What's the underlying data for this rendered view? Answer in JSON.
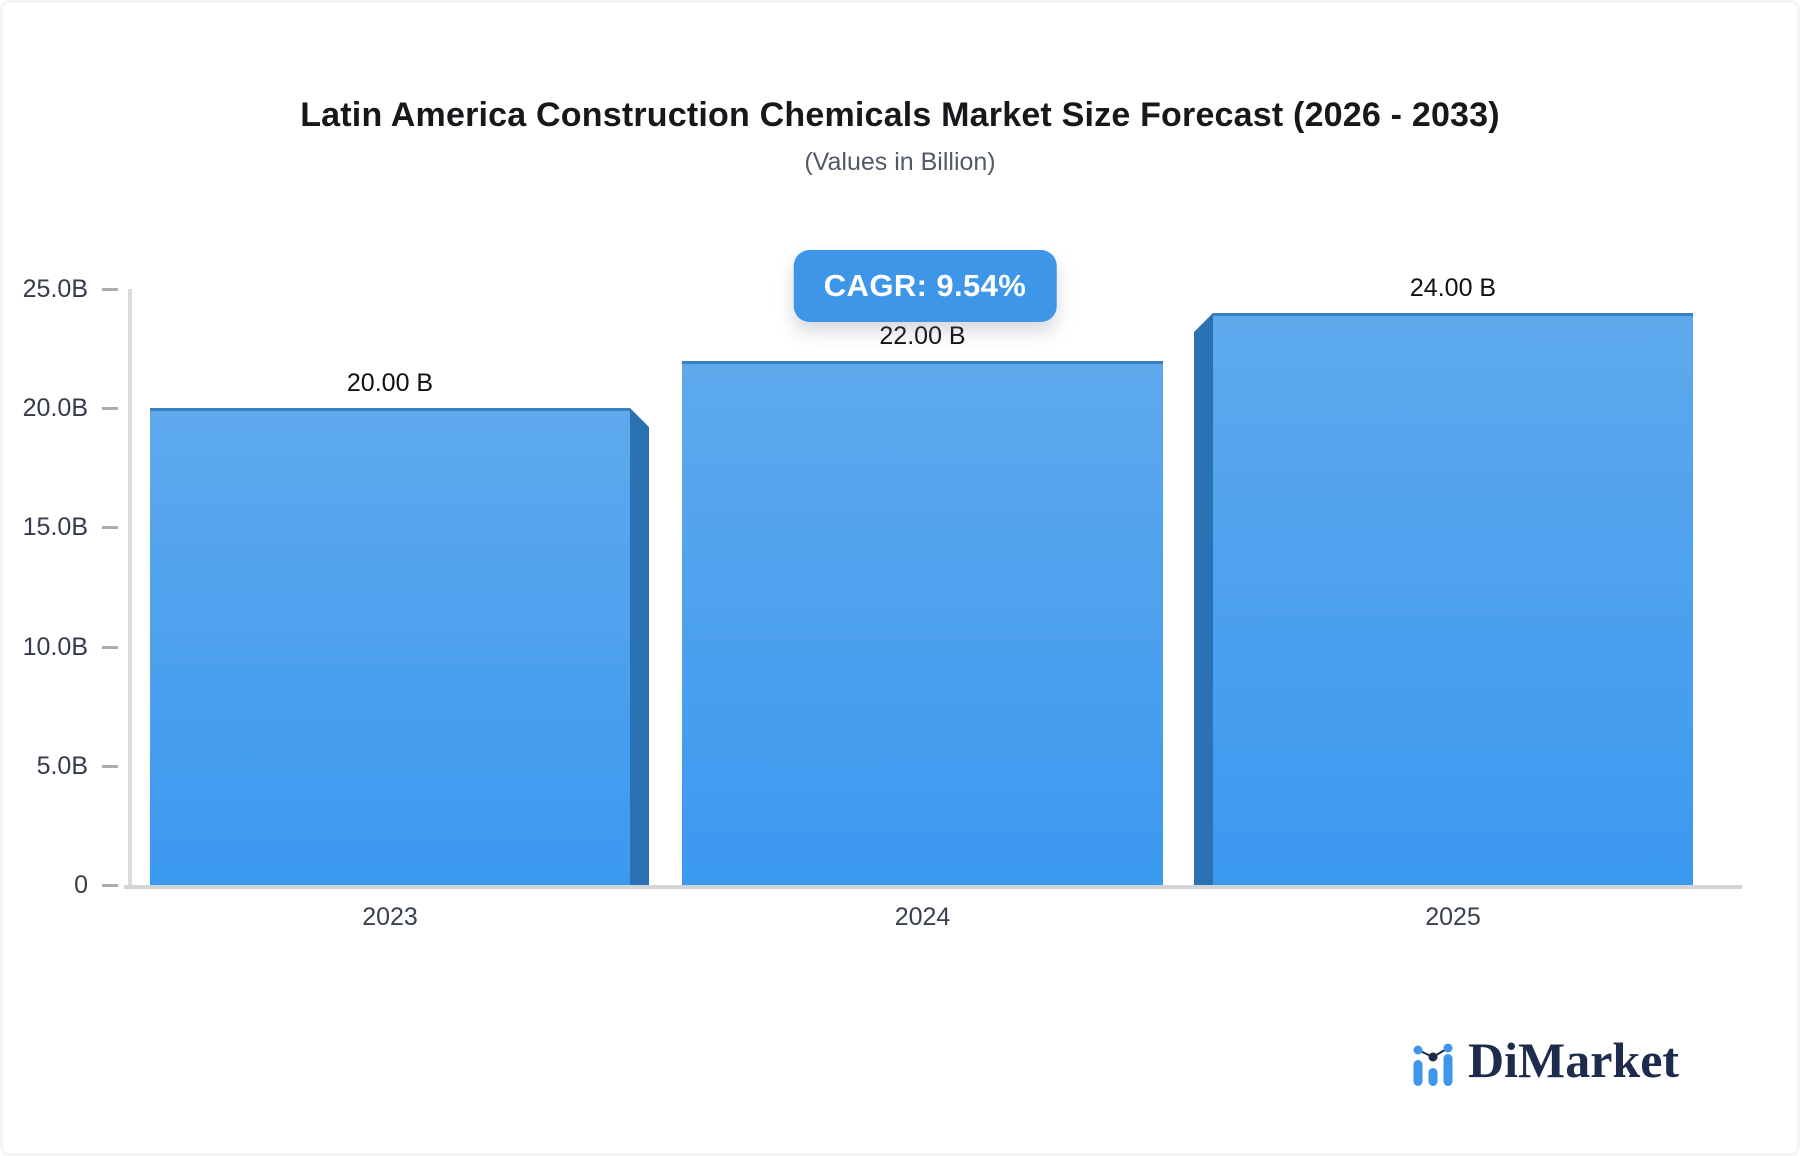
{
  "page": {
    "title": "Latin America Construction Chemicals Market Size Forecast (2026 - 2033)",
    "subtitle": "(Values in Billion)"
  },
  "badge": {
    "label": "CAGR: 9.54%",
    "bg_color": "#3e96e9",
    "text_color": "#ffffff"
  },
  "chart_data": {
    "type": "bar",
    "title": "Latin America Construction Chemicals Market Size Forecast (2026 - 2033)",
    "subtitle": "(Values in Billion)",
    "unit": "Billion",
    "categories": [
      "2023",
      "2024",
      "2025"
    ],
    "values": [
      20.0,
      22.0,
      24.0
    ],
    "value_labels": [
      "20.00 B",
      "22.00 B",
      "24.00 B"
    ],
    "xlabel": "",
    "ylabel": "",
    "ylim": [
      0,
      25
    ],
    "yticks": [
      0,
      5,
      10,
      15,
      20,
      25
    ],
    "ytick_labels": [
      "0",
      "5.0B",
      "10.0B",
      "15.0B",
      "20.0B",
      "25.0B"
    ],
    "grid": false,
    "legend": false,
    "annotations": [
      "CAGR: 9.54%"
    ],
    "colors": {
      "bar_face_top": "#5ea9ec",
      "bar_face_bottom": "#3b99f0",
      "bar_top_edge": "#3a7fc2",
      "bar_side": "#2b72b5",
      "axis_line": "#d9dadd",
      "baseline": "#d2d4d8",
      "tick": "#a9adb3",
      "tick_label": "#343b49"
    }
  },
  "logo": {
    "text": "DiMarket",
    "icon": "dimarket-bars-icon",
    "text_color": "#1d2c4c",
    "accent_color": "#3e97e8"
  }
}
